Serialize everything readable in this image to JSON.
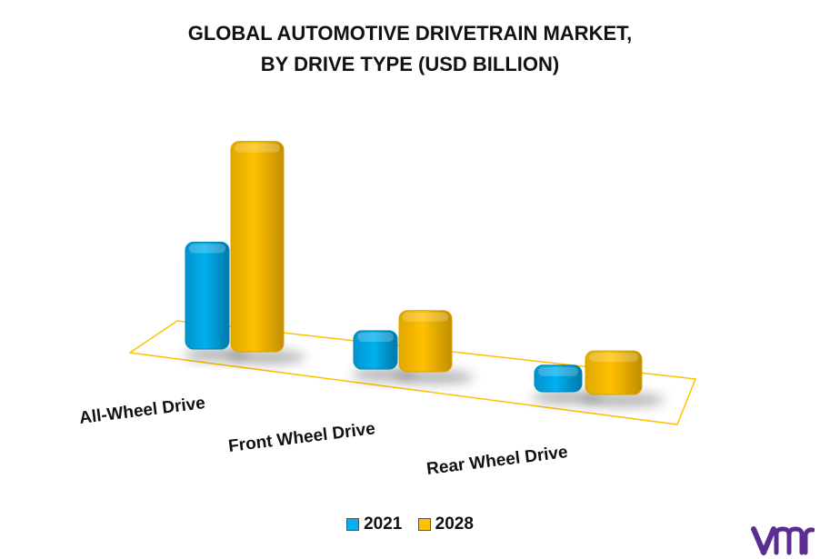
{
  "chart_data": {
    "type": "bar",
    "title_lines": [
      "GLOBAL AUTOMOTIVE DRIVETRAIN MARKET,",
      "BY DRIVE TYPE (USD BILLION)"
    ],
    "categories": [
      "All-Wheel Drive",
      "Front Wheel Drive",
      "Rear Wheel Drive"
    ],
    "series": [
      {
        "name": "2021",
        "values": [
          110,
          58,
          46
        ],
        "color": "#00B0F0"
      },
      {
        "name": "2028",
        "values": [
          210,
          90,
          73
        ],
        "color": "#FFC000"
      }
    ],
    "ylim": [
      0,
      215
    ],
    "grid": false,
    "legend_position": "bottom"
  },
  "logo": {
    "icon": "vmr-logo-icon",
    "color": "#5B2D90"
  }
}
